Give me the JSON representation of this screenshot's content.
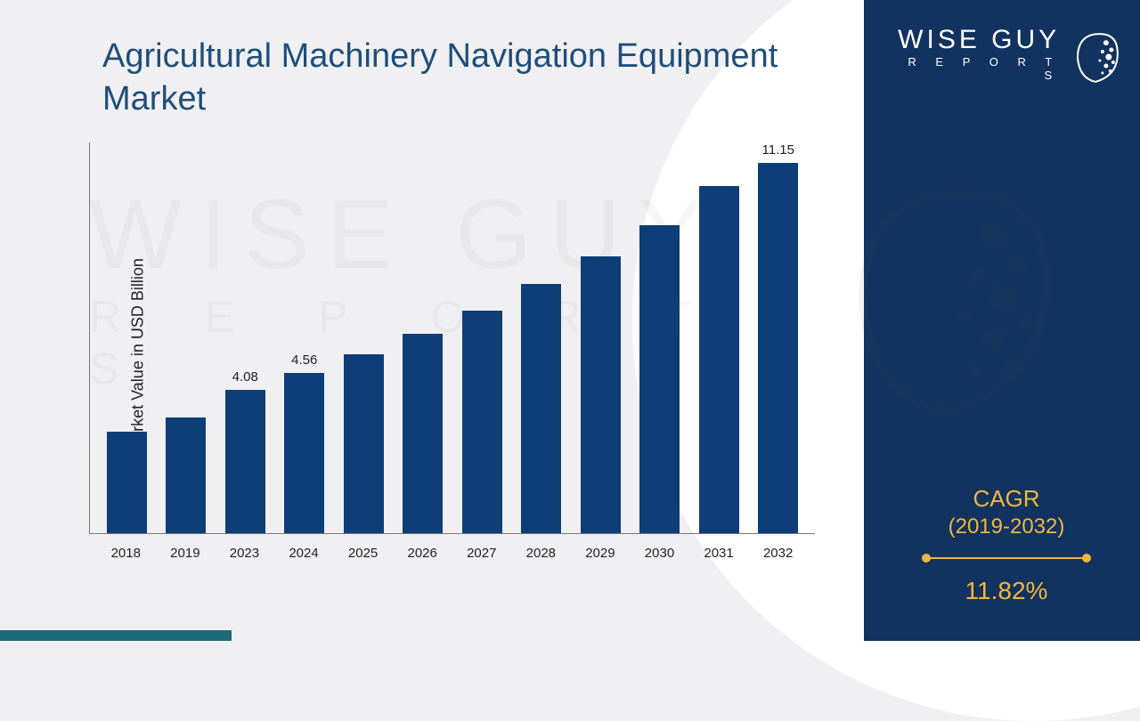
{
  "title": "Agricultural Machinery Navigation Equipment Market",
  "logo": {
    "main": "WISE GUY",
    "sub": "R E P O R T S"
  },
  "cagr": {
    "label": "CAGR",
    "range": "(2019-2032)",
    "value": "11.82%"
  },
  "chart": {
    "type": "bar",
    "ylabel": "Market Value in USD Billion",
    "ylim_max": 11.15,
    "categories": [
      "2018",
      "2019",
      "2023",
      "2024",
      "2025",
      "2026",
      "2027",
      "2028",
      "2029",
      "2030",
      "2031",
      "2032"
    ],
    "values": [
      2.9,
      3.3,
      4.08,
      4.56,
      5.1,
      5.7,
      6.35,
      7.1,
      7.9,
      8.8,
      9.9,
      11.15
    ],
    "show_labels": {
      "2023": "4.08",
      "2024": "4.56",
      "2032": "11.15"
    },
    "bar_color": "#0d3e78",
    "axis_color": "#777777",
    "text_color": "#222222",
    "background_color": "#f0f0f2",
    "panel_color": "#12335f",
    "accent_color": "#f0b63f",
    "title_color": "#1f4e7a",
    "circle_color": "#ffffff",
    "title_fontsize": 38,
    "label_fontsize": 18,
    "tick_fontsize": 15,
    "bar_width_ratio": 0.68
  }
}
